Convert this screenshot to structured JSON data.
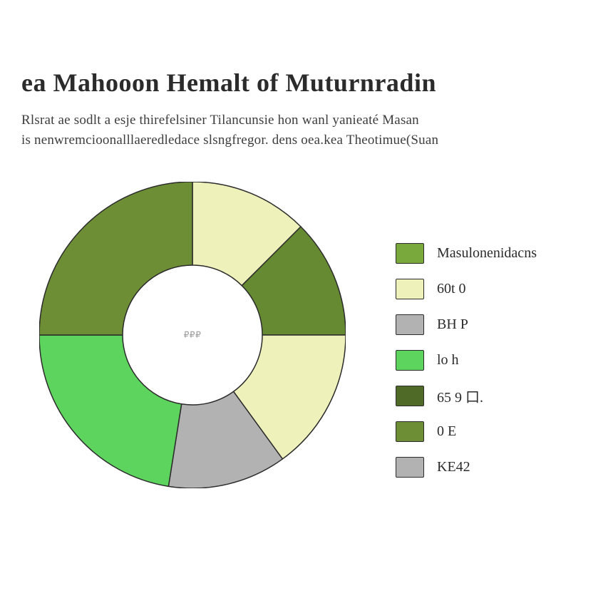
{
  "header": {
    "title": "ea Mahooon Hemalt of Muturnradin",
    "subtitle_line1": "Rlsrat ae sodlt a esje thirefelsiner Tilancunsie hon wanl yanieaté Masan",
    "subtitle_line2": "is nenwremcioonalllaeredledace slsngfregor. dens oea.kea Theotimue(Suan"
  },
  "chart": {
    "type": "donut",
    "outer_radius": 215,
    "inner_radius": 98,
    "stroke": "#2b2b2b",
    "stroke_width": 1.5,
    "center_text": "₽₽₽",
    "slices": [
      {
        "fraction": 0.125,
        "color": "#eff1bb"
      },
      {
        "fraction": 0.125,
        "color": "#668a31"
      },
      {
        "fraction": 0.15,
        "color": "#eff1bb"
      },
      {
        "fraction": 0.125,
        "color": "#b2b2b2"
      },
      {
        "fraction": 0.225,
        "color": "#5dd45d"
      },
      {
        "fraction": 0.25,
        "color": "#6d8e35"
      }
    ],
    "start_angle_deg": -90
  },
  "legend": {
    "items": [
      {
        "label": "Masulonenidacns",
        "color": "#79a93d"
      },
      {
        "label": "60t 0",
        "color": "#eff1bb"
      },
      {
        "label": "BH P",
        "color": "#b2b2b2"
      },
      {
        "label": "lo h",
        "color": "#5dd45d"
      },
      {
        "label": "65 9 口.",
        "color": "#4f6a26"
      },
      {
        "label": "0 E",
        "color": "#6d8e35"
      },
      {
        "label": "KE42",
        "color": "#b2b2b2"
      }
    ],
    "label_fontsize": 20
  }
}
